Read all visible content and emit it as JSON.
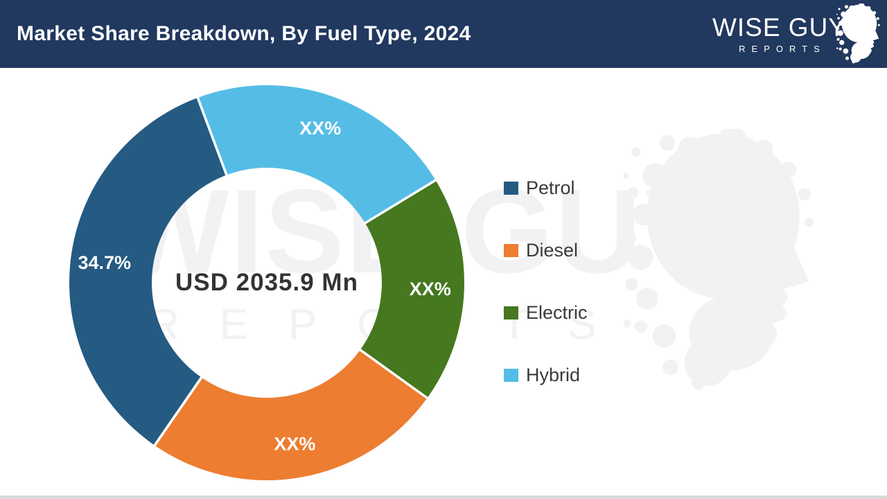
{
  "header": {
    "title": "Market Share Breakdown, By Fuel Type, 2024",
    "background_color": "#21385F",
    "logo": {
      "name": "WISE GUY",
      "subtitle": "REPORTS"
    }
  },
  "watermark": {
    "line1": "WISE GUY",
    "line2": "REPORTS"
  },
  "chart_data": {
    "type": "pie",
    "subtype": "donut",
    "title": "Market Share Breakdown, By Fuel Type, 2024",
    "center_label": "USD 2035.9 Mn",
    "total": {
      "value": 2035.9,
      "unit": "USD Mn"
    },
    "segments": [
      {
        "label": "Petrol",
        "value_pct": 34.7,
        "display_pct": "34.7%",
        "color": "#255A82"
      },
      {
        "label": "Diesel",
        "value_pct": 24.7,
        "display_pct": "XX%",
        "color": "#ED7D31"
      },
      {
        "label": "Electric",
        "value_pct": 18.6,
        "display_pct": "XX%",
        "color": "#45781F"
      },
      {
        "label": "Hybrid",
        "value_pct": 22.0,
        "display_pct": "XX%",
        "color": "#55BDE5"
      }
    ],
    "plot_order": [
      "Petrol",
      "Hybrid",
      "Electric",
      "Diesel"
    ],
    "start_angle_deg": 214.6,
    "legend_position": "right",
    "gap_color": "#FFFFFF"
  },
  "footer": {
    "bar_color": "#D9D9D9"
  }
}
